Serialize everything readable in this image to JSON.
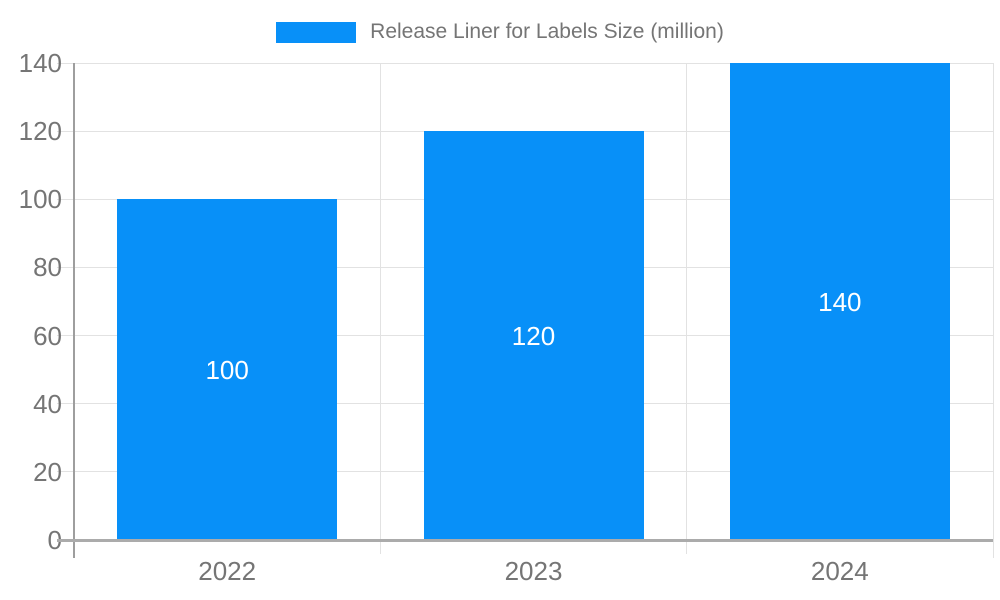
{
  "chart_data": {
    "type": "bar",
    "categories": [
      "2022",
      "2023",
      "2024"
    ],
    "series": [
      {
        "name": "Release Liner for Labels Size (million)",
        "values": [
          100,
          120,
          140
        ]
      }
    ],
    "data_labels": [
      "100",
      "120",
      "140"
    ],
    "ylim": [
      0,
      140
    ],
    "ytick_step": 20,
    "yticks": [
      "0",
      "20",
      "40",
      "60",
      "80",
      "100",
      "120",
      "140"
    ],
    "grid": true,
    "legend_position": "top-center",
    "colors": {
      "bar": "#0890f8",
      "grid_line": "#e2e2e2",
      "axis_line": "#9e9e9e",
      "baseline": "#ababab",
      "axis_text": "#757575",
      "data_label_text": "#ffffff"
    }
  }
}
